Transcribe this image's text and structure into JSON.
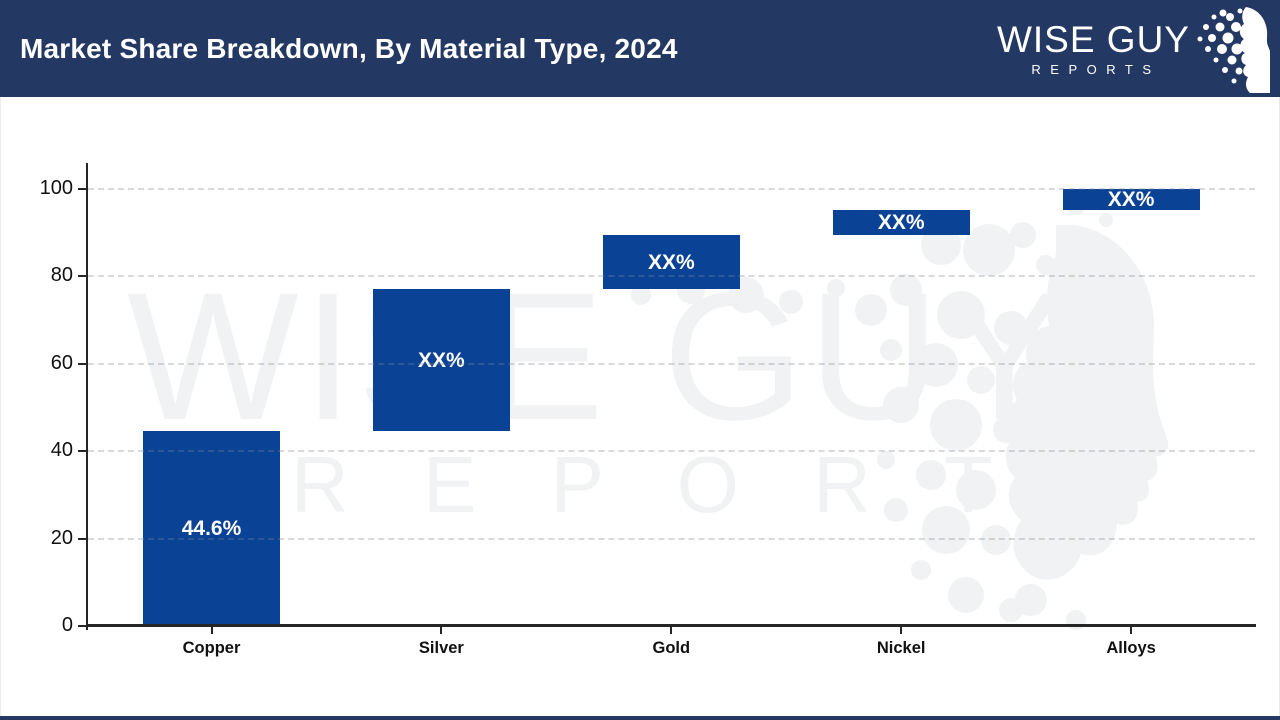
{
  "header": {
    "title": "Market Share Breakdown, By Material Type, 2024",
    "logo": {
      "wordmark": "WISE GUY",
      "subtext": "REPORTS"
    }
  },
  "watermark": {
    "wordmark": "WISE GUY",
    "subtext": "R E P O R T S"
  },
  "chart_data": {
    "type": "bar",
    "subtype": "waterfall",
    "title": "Market Share Breakdown, By Material Type, 2024",
    "categories": [
      "Copper",
      "Silver",
      "Gold",
      "Nickel",
      "Alloys"
    ],
    "segments": [
      {
        "category": "Copper",
        "start": 0,
        "end": 44.6,
        "label": "44.6%"
      },
      {
        "category": "Silver",
        "start": 44.6,
        "end": 77.0,
        "label": "XX%"
      },
      {
        "category": "Gold",
        "start": 77.0,
        "end": 89.3,
        "label": "XX%"
      },
      {
        "category": "Nickel",
        "start": 89.3,
        "end": 95.2,
        "label": "XX%"
      },
      {
        "category": "Alloys",
        "start": 95.2,
        "end": 100.0,
        "label": "XX%"
      }
    ],
    "yticks": [
      0,
      20,
      40,
      60,
      80,
      100
    ],
    "ylim": [
      0,
      104.6
    ],
    "xlabel": "",
    "ylabel": "",
    "grid": {
      "horizontal": true,
      "style": "dashed"
    },
    "legend": null,
    "colors": {
      "bar": "#0a4296",
      "bar_label": "#ffffff",
      "axis": "#262626",
      "tick_text": "#111111",
      "grid": "#d9d9d9"
    }
  },
  "theme": {
    "header_bg": "#233862",
    "accent_blue": "#0a4296",
    "watermark_color": "#f1f2f4",
    "background": "#ffffff"
  }
}
